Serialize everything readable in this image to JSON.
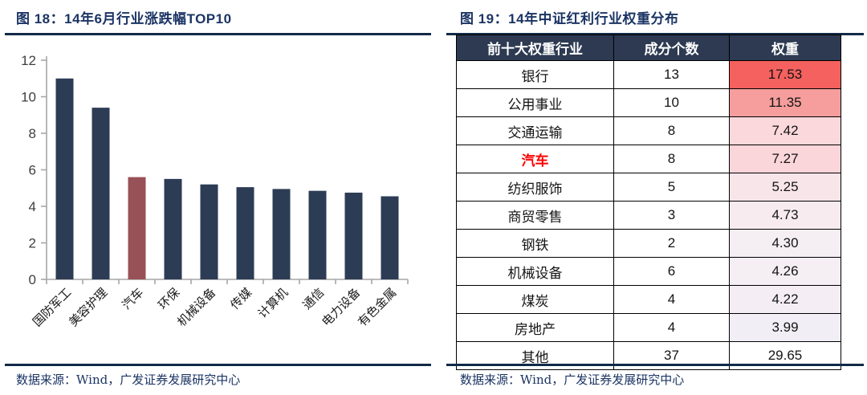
{
  "panels": {
    "left": {
      "title": "图 18：14年6月行业涨跌幅TOP10",
      "source": "数据来源：Wind，广发证券发展研究中心"
    },
    "right": {
      "title": "图 19：14年中证红利行业权重分布",
      "source": "数据来源：Wind，广发证券发展研究中心"
    }
  },
  "colors": {
    "title": "#1b3464",
    "rule": "#122a47",
    "source": "#1b3464",
    "table_header_bg": "#2d3a52",
    "table_border": "#000000",
    "highlight_text": "#fe0000"
  },
  "chart_data": [
    {
      "type": "bar",
      "title": "14年6月行业涨跌幅TOP10",
      "categories": [
        "国防军工",
        "美容护理",
        "汽车",
        "环保",
        "机械设备",
        "传媒",
        "计算机",
        "通信",
        "电力设备",
        "有色金属"
      ],
      "values": [
        11.0,
        9.4,
        5.6,
        5.5,
        5.2,
        5.05,
        4.95,
        4.85,
        4.75,
        4.55
      ],
      "highlight_index": 2,
      "bar_color": "#2d3c55",
      "highlight_color": "#985156",
      "axis_color": "#a6a6a6",
      "tick_label_color": "#3f3f3f",
      "xlabel": "",
      "ylabel": "",
      "ylim": [
        0,
        12
      ],
      "yticks": [
        0,
        2,
        4,
        6,
        8,
        10,
        12
      ],
      "grid": false,
      "legend": false
    },
    {
      "type": "table",
      "title": "14年中证红利行业权重分布",
      "headers": [
        "前十大权重行业",
        "成分个数",
        "权重"
      ],
      "rows": [
        {
          "industry": "银行",
          "count": "13",
          "weight": "17.53",
          "weight_bg": "#f4615e",
          "highlight": false
        },
        {
          "industry": "公用事业",
          "count": "10",
          "weight": "11.35",
          "weight_bg": "#f59e9d",
          "highlight": false
        },
        {
          "industry": "交通运输",
          "count": "8",
          "weight": "7.42",
          "weight_bg": "#fbd8db",
          "highlight": false
        },
        {
          "industry": "汽车",
          "count": "8",
          "weight": "7.27",
          "weight_bg": "#fad5d9",
          "highlight": true
        },
        {
          "industry": "纺织服饰",
          "count": "5",
          "weight": "5.25",
          "weight_bg": "#f8e5e9",
          "highlight": false
        },
        {
          "industry": "商贸零售",
          "count": "3",
          "weight": "4.73",
          "weight_bg": "#f7ebef",
          "highlight": false
        },
        {
          "industry": "钢铁",
          "count": "2",
          "weight": "4.30",
          "weight_bg": "#f5eef3",
          "highlight": false
        },
        {
          "industry": "机械设备",
          "count": "6",
          "weight": "4.26",
          "weight_bg": "#f5eef3",
          "highlight": false
        },
        {
          "industry": "煤炭",
          "count": "4",
          "weight": "4.22",
          "weight_bg": "#f4eef4",
          "highlight": false
        },
        {
          "industry": "房地产",
          "count": "4",
          "weight": "3.99",
          "weight_bg": "#f2eef6",
          "highlight": false
        },
        {
          "industry": "其他",
          "count": "37",
          "weight": "29.65",
          "weight_bg": "#ffffff",
          "highlight": false
        }
      ]
    }
  ]
}
